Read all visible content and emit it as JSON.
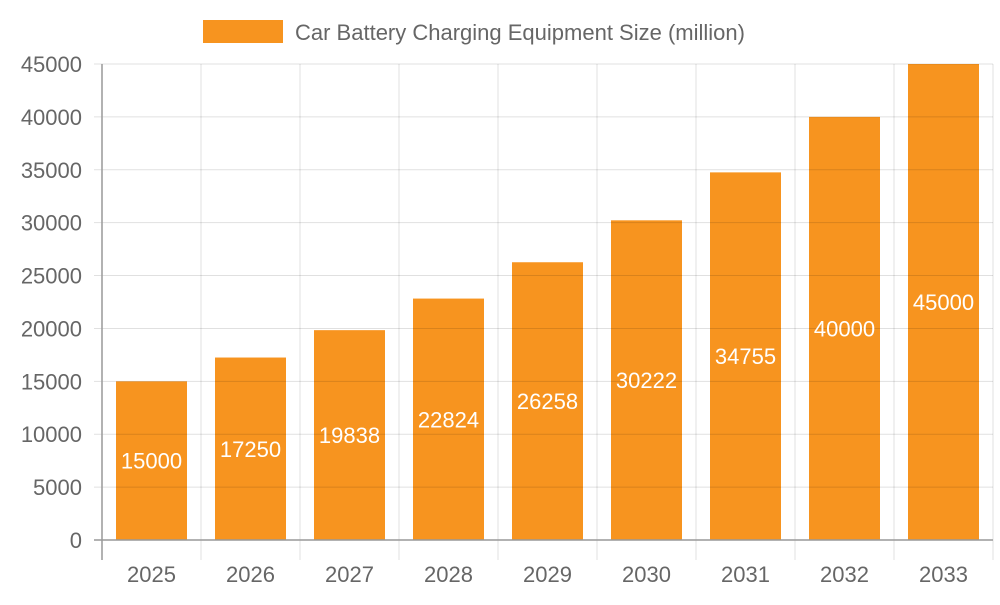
{
  "chart_data": {
    "type": "bar",
    "title": "",
    "xlabel": "",
    "ylabel": "",
    "categories": [
      "2025",
      "2026",
      "2027",
      "2028",
      "2029",
      "2030",
      "2031",
      "2032",
      "2033"
    ],
    "series": [
      {
        "name": "Car Battery Charging Equipment Size (million)",
        "values": [
          15000,
          17250,
          19838,
          22824,
          26258,
          30222,
          34755,
          40000,
          45000
        ],
        "color": "#f7941f"
      }
    ],
    "ylim": [
      0,
      45000
    ],
    "yticks": [
      0,
      5000,
      10000,
      15000,
      20000,
      25000,
      30000,
      35000,
      40000,
      45000
    ],
    "grid": true,
    "legend": "top",
    "data_labels": true
  }
}
